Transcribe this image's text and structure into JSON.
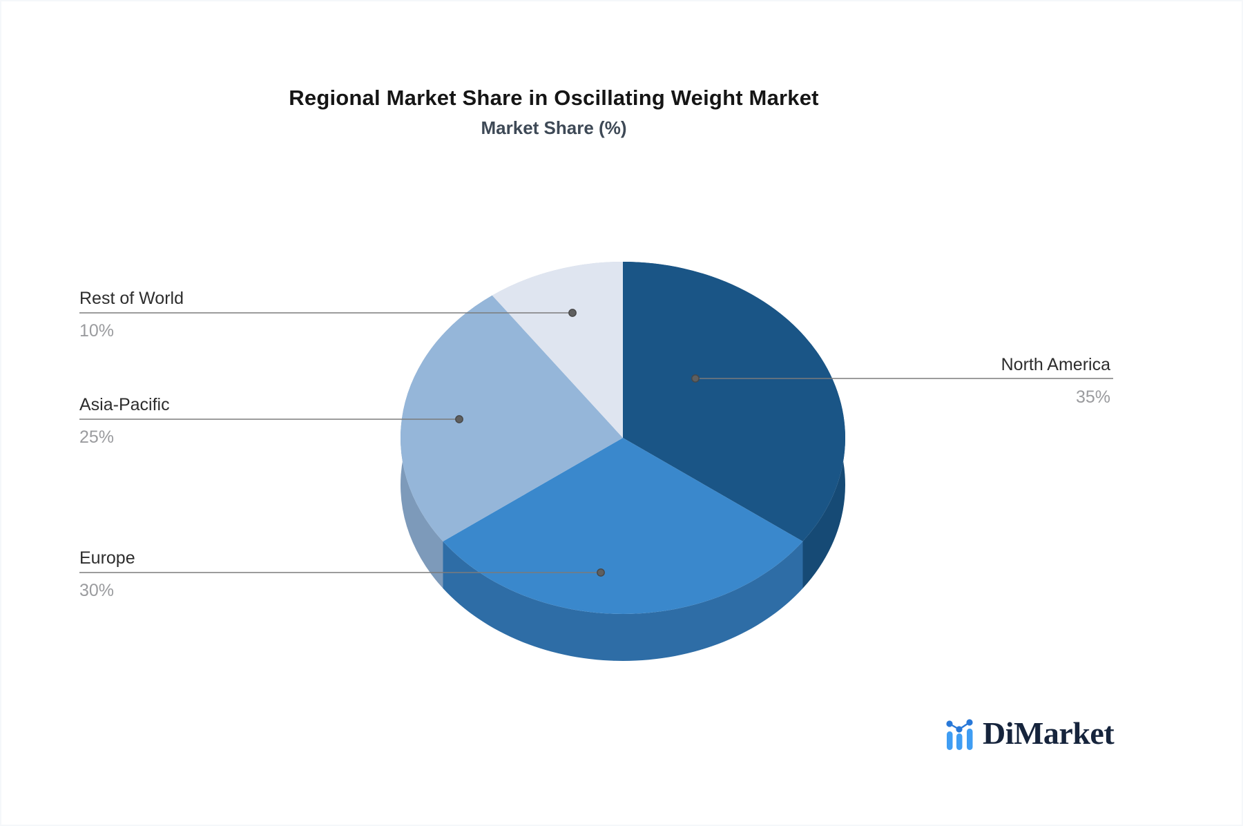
{
  "header": {
    "title": "Regional Market Share in Oscillating Weight Market",
    "subtitle": "Market Share (%)"
  },
  "chart_data": {
    "type": "pie",
    "style": "3d",
    "title": "Regional Market Share in Oscillating Weight Market",
    "subtitle": "Market Share (%)",
    "unit": "%",
    "start_angle_deg": -90,
    "direction": "clockwise",
    "legend": "none",
    "connector_color": "#7b7b7b",
    "connector_dot_color": "#5f5f5f",
    "slices": [
      {
        "label": "North America",
        "value": 35,
        "display": "35%",
        "color_top": "#1a5586",
        "color_side": "#164a75",
        "label_side": "right"
      },
      {
        "label": "Europe",
        "value": 30,
        "display": "30%",
        "color_top": "#3a88cc",
        "color_side": "#2e6da6",
        "label_side": "left"
      },
      {
        "label": "Asia-Pacific",
        "value": 25,
        "display": "25%",
        "color_top": "#95b6d9",
        "color_side": "#7d9aba",
        "label_side": "left"
      },
      {
        "label": "Rest of World",
        "value": 10,
        "display": "10%",
        "color_top": "#dfe5f0",
        "color_side": "#c3cede",
        "label_side": "left"
      }
    ]
  },
  "branding": {
    "logo_text": "DiMarket",
    "logo_icon": "bar-line-chart-icon",
    "logo_text_color": "#16243c",
    "logo_icon_bar_color": "#3f9df3",
    "logo_icon_dot_color": "#2878d8"
  }
}
